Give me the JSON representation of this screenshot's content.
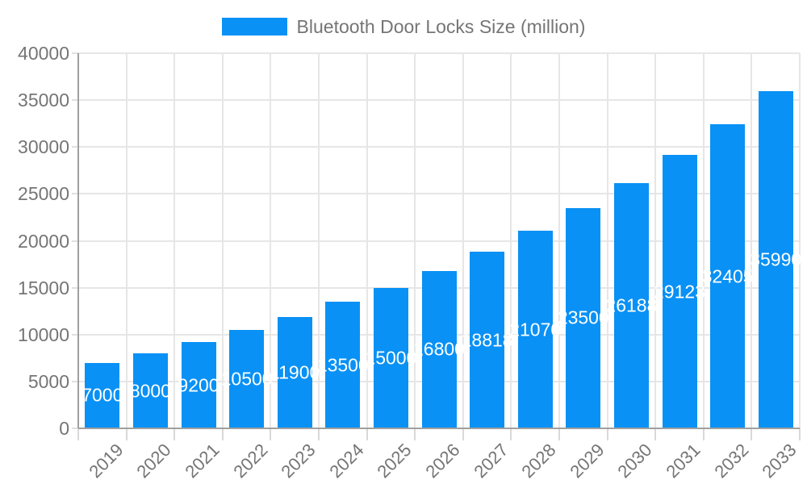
{
  "legend": {
    "label": "Bluetooth Door Locks Size (million)",
    "swatch_color": "#0991f5"
  },
  "chart_data": {
    "type": "bar",
    "title": "Bluetooth Door Locks Size (million)",
    "categories": [
      "2019",
      "2020",
      "2021",
      "2022",
      "2023",
      "2024",
      "2025",
      "2026",
      "2027",
      "2028",
      "2029",
      "2030",
      "2031",
      "2032",
      "2033"
    ],
    "values": [
      7000,
      8000,
      9200,
      10500,
      11900,
      13500,
      15000,
      16800,
      18818,
      21070,
      23500,
      26188,
      29123,
      32405,
      35990
    ],
    "data_labels_visible": true,
    "xlabel": "",
    "ylabel": "",
    "ylim": [
      0,
      40000
    ],
    "ytick_step": 5000,
    "ytick_labels": [
      "0",
      "5000",
      "10000",
      "15000",
      "20000",
      "25000",
      "30000",
      "35000",
      "40000"
    ],
    "grid": true,
    "legend_position": "top-center",
    "bar_color": "#0991f5",
    "data_label_color": "#ffffff",
    "axis_text_color": "#757575",
    "gridline_color": "#e6e6e6",
    "axis_line_color": "#a0a0a0"
  }
}
